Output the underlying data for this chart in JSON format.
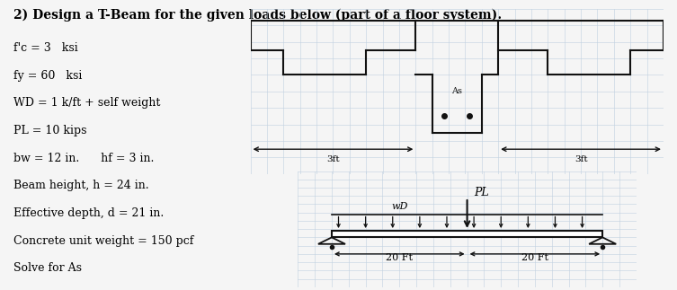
{
  "title": "2) Design a T-Beam for the given loads below (part of a floor system).",
  "title_fontsize": 10,
  "lines_plain": [
    "f'c = 3   ksi",
    "fy = 60   ksi",
    "WD = 1 k/ft + self weight",
    "PL = 10 kips",
    "bw = 12 in.      hf = 3 in.",
    "Beam height, h = 24 in.",
    "Effective depth, d = 21 in.",
    "Concrete unit weight = 150 pcf",
    "Solve for As"
  ],
  "text_fontsize": 9.0,
  "bg_color": "#f5f5f5",
  "grid_color": "#c0d0e0",
  "line_color": "#111111"
}
